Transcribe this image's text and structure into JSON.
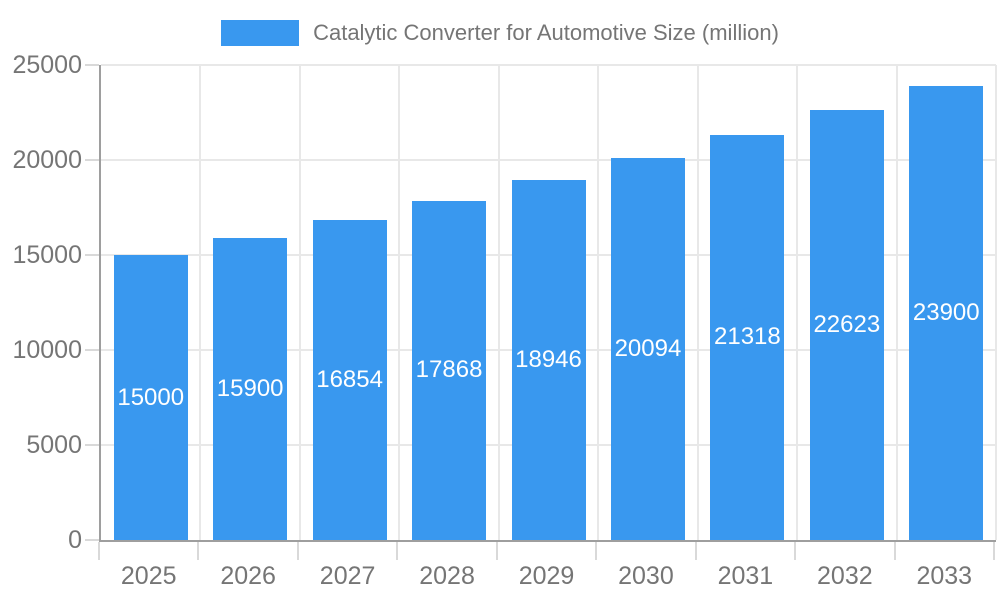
{
  "chart_data": {
    "type": "bar",
    "title": "Catalytic Converter for Automotive Size (million)",
    "categories": [
      "2025",
      "2026",
      "2027",
      "2028",
      "2029",
      "2030",
      "2031",
      "2032",
      "2033"
    ],
    "values": [
      15000,
      15900,
      16854,
      17868,
      18946,
      20094,
      21318,
      22623,
      23900
    ],
    "xlabel": "",
    "ylabel": "",
    "ylim": [
      0,
      25000
    ],
    "y_ticks": [
      0,
      5000,
      10000,
      15000,
      20000,
      25000
    ],
    "grid": true,
    "legend_position": "top",
    "bar_color": "#3998EF",
    "value_label_color": "#FFFFFF",
    "axis_text_color": "#757575",
    "gridline_color": "#E8E8E8",
    "axis_line_color": "#9E9E9E"
  }
}
